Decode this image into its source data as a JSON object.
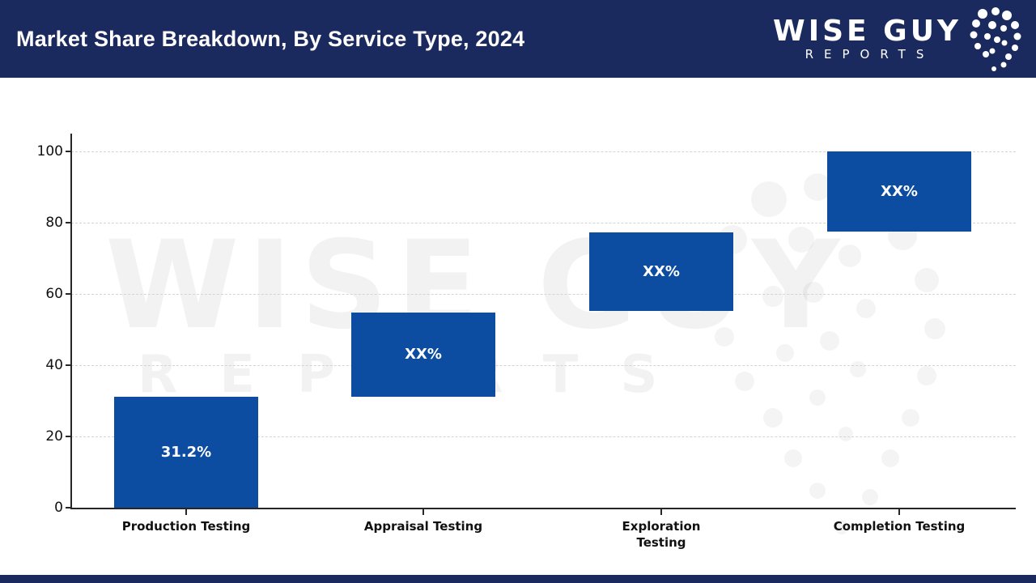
{
  "header": {
    "title": "Market Share Breakdown, By Service Type, 2024",
    "logo": {
      "line1": "WISE GUY",
      "line2": "REPORTS"
    }
  },
  "watermark": {
    "line1": "WISE GUY",
    "line2": "REPORTS"
  },
  "chart_data": {
    "type": "bar",
    "subtype": "waterfall",
    "title": "Market Share Breakdown, By Service Type, 2024",
    "categories": [
      "Production Testing",
      "Appraisal Testing",
      "Exploration\nTesting",
      "Completion Testing"
    ],
    "segments": [
      {
        "start": 0,
        "end": 31.2,
        "label": "31.2%"
      },
      {
        "start": 31.2,
        "end": 54.8,
        "label": "XX%"
      },
      {
        "start": 55.2,
        "end": 77.2,
        "label": "XX%"
      },
      {
        "start": 77.5,
        "end": 100,
        "label": "XX%"
      }
    ],
    "yticks": [
      0,
      20,
      40,
      60,
      80,
      100
    ],
    "ylim": [
      0,
      100
    ],
    "xlabel": "",
    "ylabel": "",
    "grid": true,
    "legend": "none",
    "bar_color": "#0c4da2",
    "label_color": "#ffffff"
  },
  "colors": {
    "header_bg": "#1b2a5e",
    "footer_bg": "#1b2a5e",
    "bar": "#0c4da2",
    "axis": "#262626",
    "grid": "#d4d4d4"
  }
}
